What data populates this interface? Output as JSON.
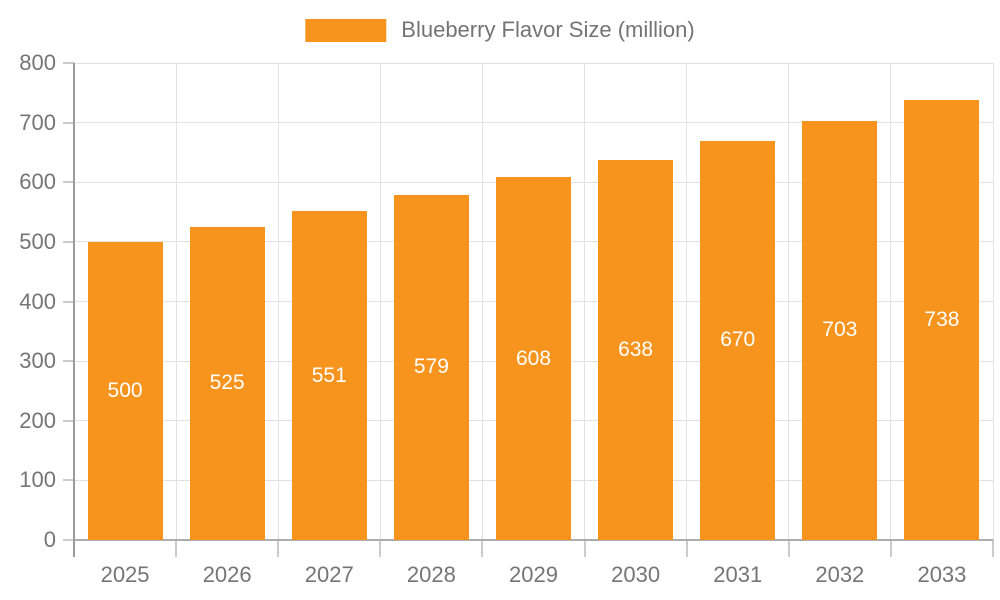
{
  "chart_data": {
    "type": "bar",
    "categories": [
      "2025",
      "2026",
      "2027",
      "2028",
      "2029",
      "2030",
      "2031",
      "2032",
      "2033"
    ],
    "series": [
      {
        "name": "Blueberry Flavor Size (million)",
        "values": [
          500,
          525,
          551,
          579,
          608,
          638,
          670,
          703,
          738
        ]
      }
    ],
    "bar_value_labels": [
      "500",
      "525",
      "551",
      "579",
      "608",
      "638",
      "670",
      "703",
      "738"
    ],
    "ylim": [
      0,
      800
    ],
    "ytick_interval": 100,
    "ytick_labels": [
      "0",
      "100",
      "200",
      "300",
      "400",
      "500",
      "600",
      "700",
      "800"
    ],
    "xlabel": "",
    "ylabel": "",
    "grid": "both",
    "legend_position": "top-center",
    "colors": {
      "bar": "#F7941E",
      "bar_label": "#FFFFFF",
      "axis_text": "#757575",
      "legend_text": "#747474",
      "grid_line": "#E2E2E2",
      "y_axis_line": "#9B9B9B",
      "x_axis_line": "#ADADAD",
      "tick": "#CBCBCB",
      "background": "#FFFFFF"
    }
  }
}
